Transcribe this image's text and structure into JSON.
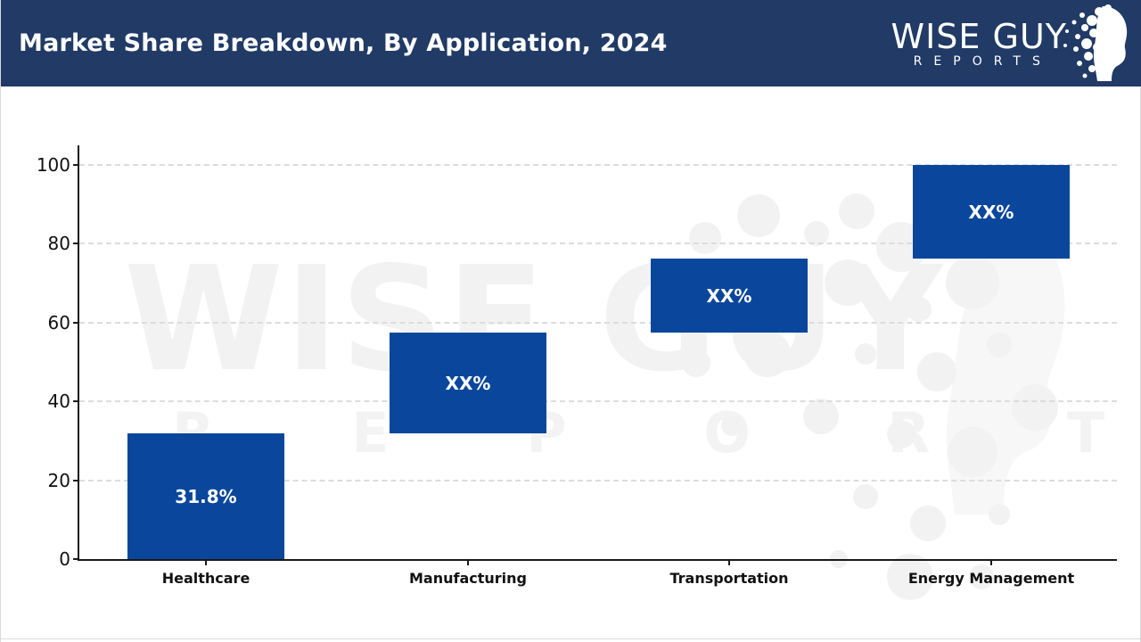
{
  "header": {
    "title": "Market Share Breakdown, By Application, 2024",
    "logo": {
      "line1": "WISE GUY",
      "line2": "REPORTS"
    }
  },
  "watermark": {
    "line1": "WISE GUY",
    "line2": "R E P O R T S"
  },
  "colors": {
    "header_bg": "#213a66",
    "bar_fill": "#0a479c",
    "grid_line": "#dcdcdc",
    "axis_line": "#1a1a1a",
    "bar_label_text": "#ffffff",
    "tick_text": "#111111"
  },
  "chart_data": {
    "type": "bar",
    "subtype": "waterfall",
    "title": "Market Share Breakdown, By Application, 2024",
    "xlabel": "",
    "ylabel": "",
    "categories": [
      "Healthcare",
      "Manufacturing",
      "Transportation",
      "Energy Management"
    ],
    "segments": [
      {
        "category": "Healthcare",
        "start": 0,
        "end": 31.8,
        "label": "31.8%"
      },
      {
        "category": "Manufacturing",
        "start": 31.8,
        "end": 57.5,
        "label": "XX%"
      },
      {
        "category": "Transportation",
        "start": 57.5,
        "end": 76.2,
        "label": "XX%"
      },
      {
        "category": "Energy Management",
        "start": 76.2,
        "end": 100,
        "label": "XX%"
      }
    ],
    "yticks": [
      0,
      20,
      40,
      60,
      80,
      100
    ],
    "ylim": [
      0,
      105
    ],
    "grid": "horizontal dashed",
    "legend": "none"
  }
}
